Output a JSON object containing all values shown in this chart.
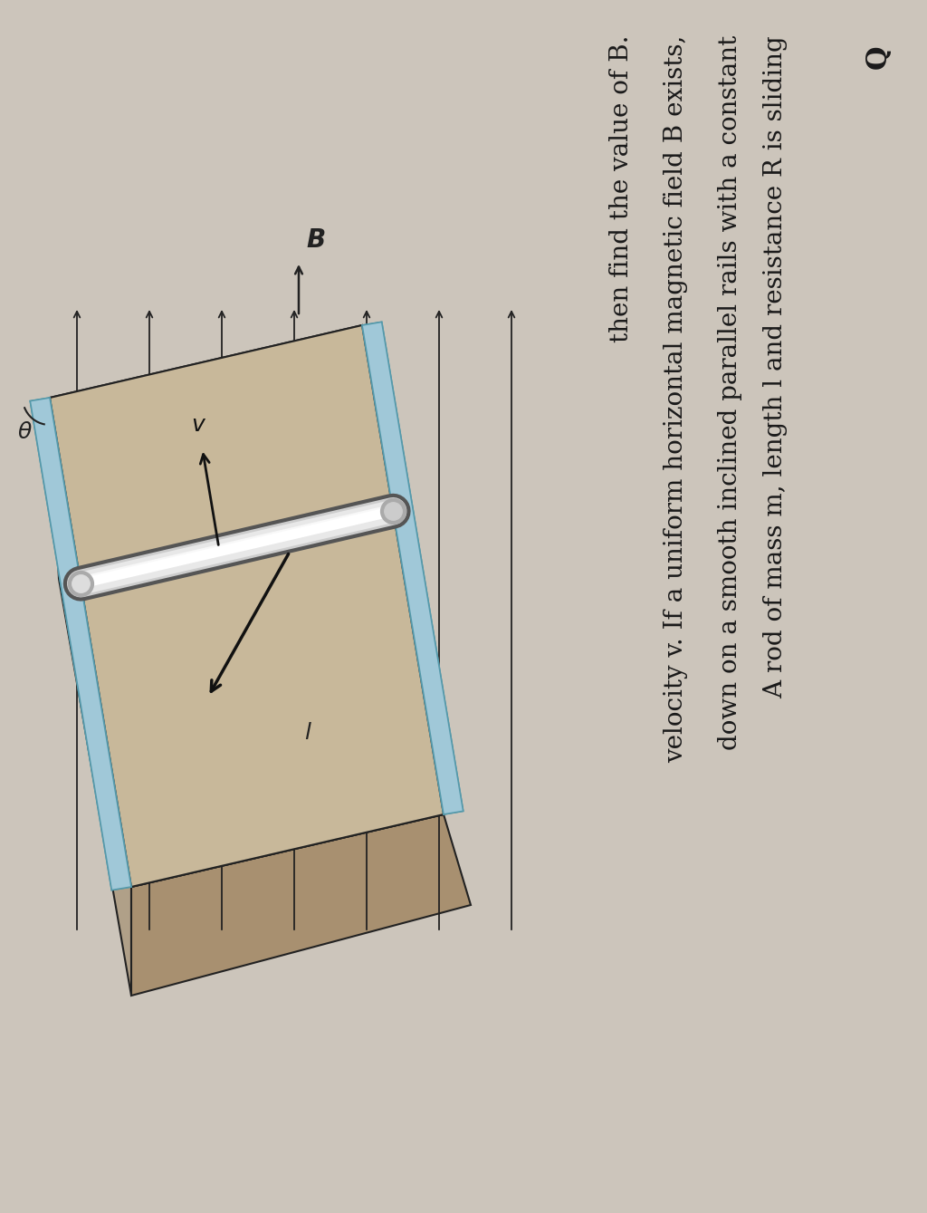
{
  "background_color": "#ccc5bb",
  "page_color": "#d8d0c8",
  "text_color": "#1a1a1a",
  "line_color": "#222222",
  "arrow_color": "#111111",
  "incline_top_color": "#c8b89a",
  "incline_side_color": "#b0a088",
  "incline_bottom_color": "#a89070",
  "rail_color": "#a0c8d8",
  "rail_edge_color": "#6aaSS8",
  "rod_outer": "#888888",
  "rod_inner": "#ffffff",
  "rod_highlight": "#eeeeee",
  "title_text": "Q",
  "question_line1": "A rod of mass m, length l and resistance R is sliding",
  "question_line2": "down on a smooth inclined parallel rails with a constant",
  "question_line3": "velocity v. If a uniform horizontal magnetic field B exists,",
  "question_line4": "then find the value of B.",
  "theta_label": "θ",
  "v_label": "v",
  "B_label": "B",
  "l_label": "l",
  "text_fontsize": 20,
  "title_fontsize": 22
}
